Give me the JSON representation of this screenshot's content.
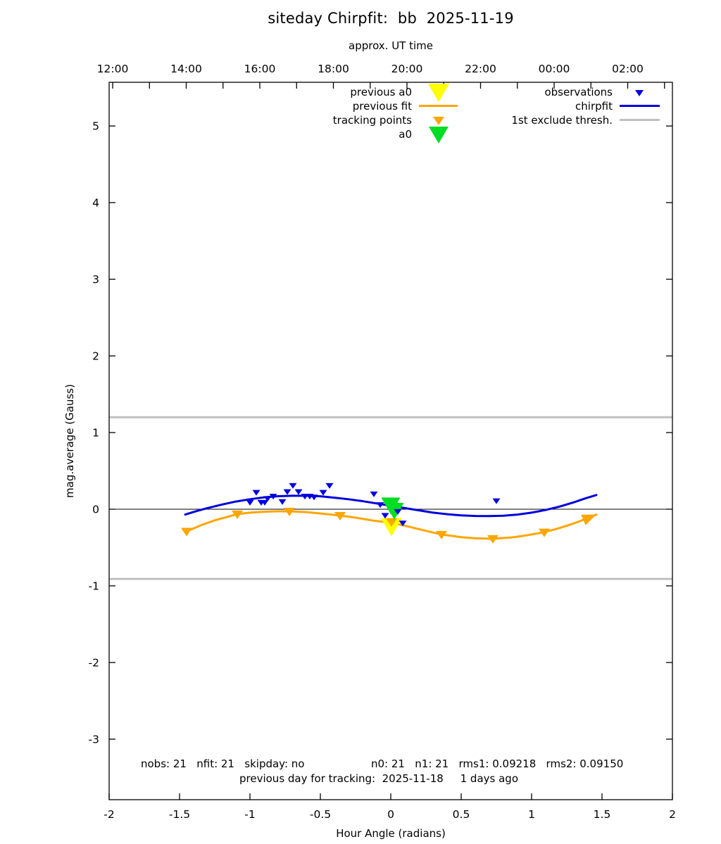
{
  "title": "siteday Chirpfit:  bb  2025-11-19",
  "stats": {
    "line1_left": "nobs: 21   nfit: 21   skipday: no",
    "line1_right": "n0: 21   n1: 21   rms1: 0.09218   rms2: 0.09150",
    "line2": "previous day for tracking:  2025-11-18     1 days ago"
  },
  "chart_data": {
    "type": "line",
    "title": "siteday Chirpfit:  bb  2025-11-19",
    "xlabel": "Hour Angle (radians)",
    "ylabel": "mag.average (Gauss)",
    "x2label": "approx. UT time",
    "xlim": [
      -2,
      2
    ],
    "ylim": [
      -3.79,
      5.57
    ],
    "grid": false,
    "x_ticks": [
      -2,
      -1.5,
      -1,
      -0.5,
      0,
      0.5,
      1,
      1.5,
      2
    ],
    "x_tick_labels": [
      "-2",
      "-1.5",
      "-1",
      "-0.5",
      "0",
      "0.5",
      "1",
      "1.5",
      "2"
    ],
    "y_ticks": [
      -3,
      -2,
      -1,
      0,
      1,
      2,
      3,
      4,
      5
    ],
    "x2_axis": {
      "label": "approx. UT time",
      "tick_labels": [
        "12:00",
        "14:00",
        "16:00",
        "18:00",
        "20:00",
        "22:00",
        "00:00",
        "02:00"
      ],
      "first_tick_x": -1.975,
      "hour_step_x": 0.26125,
      "num_hour_ticks": 16,
      "label_every": 2
    },
    "zero_line_y": 0,
    "thresholds": {
      "label": "1st exclude thresh.",
      "color": "#c0c0c0",
      "y_values": [
        1.2,
        -0.91
      ]
    },
    "series": [
      {
        "name": "previous fit",
        "kind": "line",
        "color": "#ffa500",
        "width": 3,
        "arrow_end": true,
        "points": [
          [
            -1.45,
            -0.29
          ],
          [
            -1.35,
            -0.21
          ],
          [
            -1.25,
            -0.145
          ],
          [
            -1.15,
            -0.095
          ],
          [
            -1.09,
            -0.064
          ],
          [
            -1.0,
            -0.045
          ],
          [
            -0.9,
            -0.033
          ],
          [
            -0.8,
            -0.028
          ],
          [
            -0.72,
            -0.028
          ],
          [
            -0.6,
            -0.038
          ],
          [
            -0.5,
            -0.055
          ],
          [
            -0.36,
            -0.083
          ],
          [
            -0.25,
            -0.11
          ],
          [
            -0.12,
            -0.15
          ],
          [
            0.0,
            -0.175
          ],
          [
            0.1,
            -0.215
          ],
          [
            0.2,
            -0.26
          ],
          [
            0.36,
            -0.33
          ],
          [
            0.5,
            -0.365
          ],
          [
            0.6,
            -0.38
          ],
          [
            0.725,
            -0.385
          ],
          [
            0.85,
            -0.37
          ],
          [
            0.95,
            -0.345
          ],
          [
            1.09,
            -0.3
          ],
          [
            1.2,
            -0.245
          ],
          [
            1.3,
            -0.185
          ],
          [
            1.38,
            -0.13
          ],
          [
            1.46,
            -0.07
          ]
        ]
      },
      {
        "name": "chirpfit",
        "kind": "line",
        "color": "#0000dd",
        "width": 3,
        "arrow_end": false,
        "points": [
          [
            -1.46,
            -0.07
          ],
          [
            -1.38,
            -0.025
          ],
          [
            -1.3,
            0.015
          ],
          [
            -1.2,
            0.06
          ],
          [
            -1.1,
            0.1
          ],
          [
            -1.0,
            0.13
          ],
          [
            -0.9,
            0.155
          ],
          [
            -0.8,
            0.17
          ],
          [
            -0.7,
            0.175
          ],
          [
            -0.6,
            0.175
          ],
          [
            -0.5,
            0.168
          ],
          [
            -0.4,
            0.15
          ],
          [
            -0.3,
            0.13
          ],
          [
            -0.2,
            0.105
          ],
          [
            -0.1,
            0.075
          ],
          [
            0.0,
            0.045
          ],
          [
            0.1,
            0.015
          ],
          [
            0.2,
            -0.015
          ],
          [
            0.3,
            -0.045
          ],
          [
            0.4,
            -0.065
          ],
          [
            0.5,
            -0.08
          ],
          [
            0.6,
            -0.088
          ],
          [
            0.7,
            -0.09
          ],
          [
            0.8,
            -0.085
          ],
          [
            0.9,
            -0.07
          ],
          [
            1.0,
            -0.045
          ],
          [
            1.1,
            -0.01
          ],
          [
            1.2,
            0.035
          ],
          [
            1.3,
            0.09
          ],
          [
            1.38,
            0.14
          ],
          [
            1.46,
            0.185
          ]
        ]
      },
      {
        "name": "previous a0",
        "kind": "scatter",
        "marker": "triangle-down",
        "color": "#ffff00",
        "marker_w": 30,
        "marker_h": 26,
        "points": [
          [
            0.005,
            -0.215
          ]
        ]
      },
      {
        "name": "tracking points",
        "kind": "scatter",
        "marker": "triangle-down",
        "color": "#ffa500",
        "marker_w": 16,
        "marker_h": 12,
        "points": [
          [
            -1.45,
            -0.29
          ],
          [
            -1.09,
            -0.064
          ],
          [
            -0.72,
            -0.028
          ],
          [
            -0.36,
            -0.083
          ],
          [
            0.005,
            -0.165
          ],
          [
            0.36,
            -0.33
          ],
          [
            0.725,
            -0.385
          ],
          [
            1.09,
            -0.3
          ]
        ]
      },
      {
        "name": "a0",
        "kind": "scatter",
        "marker": "triangle-down",
        "color": "#00dd22",
        "marker_w": 27,
        "marker_h": 24,
        "points": [
          [
            0.0,
            0.06
          ],
          [
            0.025,
            -0.01
          ]
        ]
      },
      {
        "name": "observations",
        "kind": "scatter",
        "marker": "triangle-down",
        "color": "#0000dd",
        "marker_w": 11,
        "marker_h": 8,
        "points": [
          [
            -1.0,
            0.09
          ],
          [
            -0.955,
            0.22
          ],
          [
            -0.92,
            0.09
          ],
          [
            -0.895,
            0.09
          ],
          [
            -0.875,
            0.14
          ],
          [
            -0.835,
            0.17
          ],
          [
            -0.77,
            0.1
          ],
          [
            -0.735,
            0.23
          ],
          [
            -0.695,
            0.31
          ],
          [
            -0.655,
            0.23
          ],
          [
            -0.61,
            0.17
          ],
          [
            -0.575,
            0.17
          ],
          [
            -0.545,
            0.16
          ],
          [
            -0.48,
            0.22
          ],
          [
            -0.435,
            0.31
          ],
          [
            -0.12,
            0.2
          ],
          [
            -0.075,
            0.06
          ],
          [
            -0.04,
            -0.08
          ],
          [
            0.05,
            -0.03
          ],
          [
            0.085,
            -0.18
          ],
          [
            0.75,
            0.11
          ]
        ]
      }
    ],
    "legend": {
      "left": [
        {
          "label": "previous a0",
          "symbol": "triangle",
          "color": "#ffff00"
        },
        {
          "label": "previous fit",
          "symbol": "line",
          "color": "#ffa500"
        },
        {
          "label": "tracking points",
          "symbol": "triangle",
          "color": "#ffa500"
        },
        {
          "label": "a0",
          "symbol": "triangle",
          "color": "#00dd22"
        }
      ],
      "right": [
        {
          "label": "observations",
          "symbol": "triangle",
          "color": "#0000dd"
        },
        {
          "label": "chirpfit",
          "symbol": "line",
          "color": "#0000dd"
        },
        {
          "label": "1st exclude thresh.",
          "symbol": "line",
          "color": "#c0c0c0"
        }
      ]
    }
  }
}
